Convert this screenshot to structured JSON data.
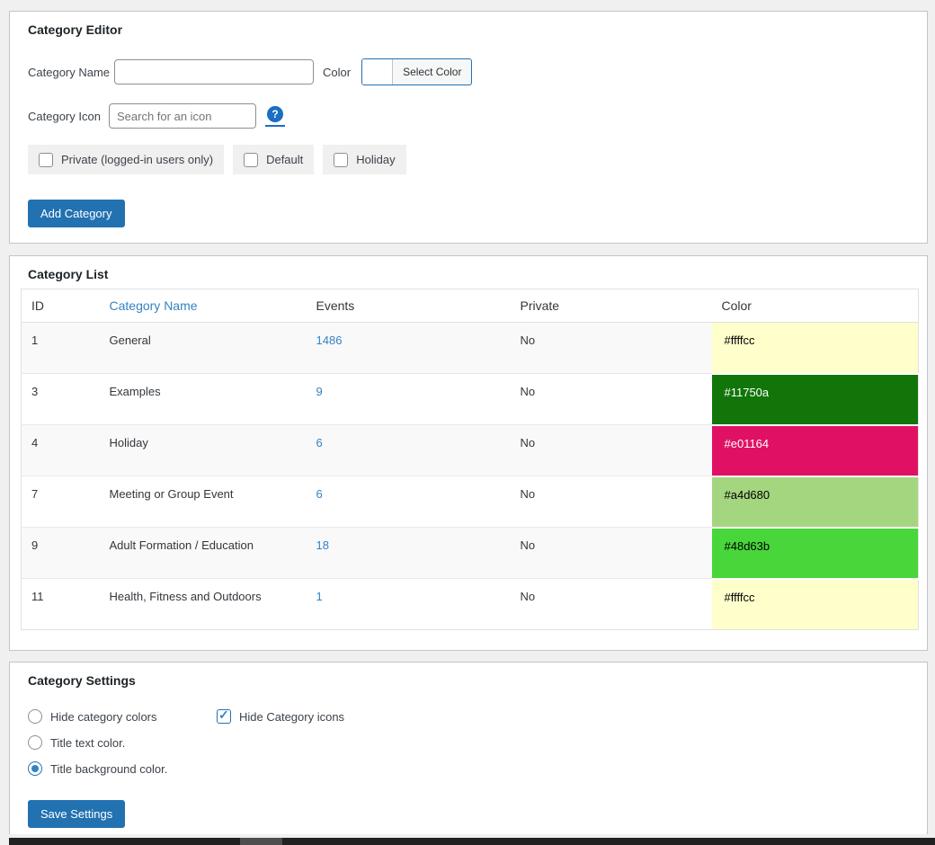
{
  "editor": {
    "title": "Category Editor",
    "name_label": "Category Name",
    "name_value": "",
    "color_label": "Color",
    "select_color_label": "Select Color",
    "icon_label": "Category Icon",
    "icon_placeholder": "Search for an icon",
    "icon_value": "",
    "help_icon": "?",
    "checkboxes": [
      {
        "label": "Private (logged-in users only)",
        "checked": false
      },
      {
        "label": "Default",
        "checked": false
      },
      {
        "label": "Holiday",
        "checked": false
      }
    ],
    "add_button": "Add Category"
  },
  "list": {
    "title": "Category List",
    "columns": {
      "id": "ID",
      "name": "Category Name",
      "events": "Events",
      "private": "Private",
      "color": "Color"
    },
    "rows": [
      {
        "id": "1",
        "name": "General",
        "events": "1486",
        "private": "No",
        "color": "#ffffcc",
        "text_color": "#000000"
      },
      {
        "id": "3",
        "name": "Examples",
        "events": "9",
        "private": "No",
        "color": "#11750a",
        "text_color": "#ffffff"
      },
      {
        "id": "4",
        "name": "Holiday",
        "events": "6",
        "private": "No",
        "color": "#e01164",
        "text_color": "#ffffff"
      },
      {
        "id": "7",
        "name": "Meeting or Group Event",
        "events": "6",
        "private": "No",
        "color": "#a4d680",
        "text_color": "#000000"
      },
      {
        "id": "9",
        "name": "Adult Formation / Education",
        "events": "18",
        "private": "No",
        "color": "#48d63b",
        "text_color": "#000000"
      },
      {
        "id": "11",
        "name": "Health, Fitness and Outdoors",
        "events": "1",
        "private": "No",
        "color": "#ffffcc",
        "text_color": "#000000"
      }
    ]
  },
  "settings": {
    "title": "Category Settings",
    "radios": [
      {
        "label": "Hide category colors",
        "checked": false
      },
      {
        "label": "Title text color.",
        "checked": false
      },
      {
        "label": "Title background color.",
        "checked": true
      }
    ],
    "icons_checkbox": {
      "label": "Hide Category icons",
      "checked": true
    },
    "save_button": "Save Settings"
  },
  "colors": {
    "accent": "#2271b1",
    "link": "#3582c4",
    "page_background": "#f0f0f1"
  }
}
